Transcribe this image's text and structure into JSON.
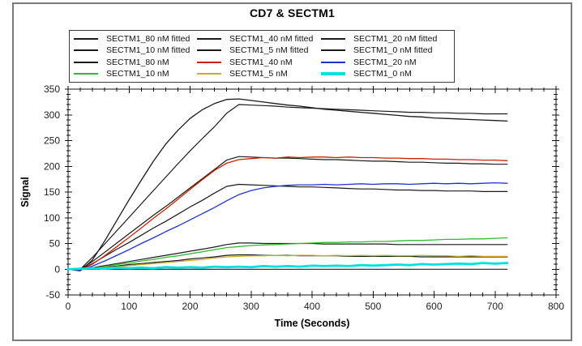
{
  "frame": {
    "border_color": "#7a7a7a"
  },
  "legend": {
    "border_color": "#3a3a3a",
    "columns": 3,
    "position": "top-center"
  },
  "chart_data": {
    "type": "line",
    "title": "CD7 & SECTM1",
    "xlabel": "Time (Seconds)",
    "ylabel": "Signal",
    "xlim": [
      0,
      800
    ],
    "ylim": [
      -50,
      350
    ],
    "x_ticks": [
      0,
      100,
      200,
      300,
      400,
      500,
      600,
      700,
      800
    ],
    "x_minor_step": 20,
    "y_ticks": [
      -50,
      0,
      50,
      100,
      150,
      200,
      250,
      300,
      350
    ],
    "y_minor_step": 10,
    "grid": false,
    "x": [
      0,
      20,
      40,
      60,
      80,
      100,
      120,
      140,
      160,
      180,
      200,
      220,
      240,
      260,
      280,
      300,
      320,
      340,
      360,
      380,
      400,
      420,
      440,
      460,
      480,
      500,
      520,
      540,
      560,
      580,
      600,
      620,
      640,
      660,
      680,
      700,
      720
    ],
    "series": [
      {
        "name": "SECTM1_80 nM fitted",
        "color": "#1a1a1a",
        "width": 1.2,
        "values": [
          0,
          0,
          23,
          49,
          75,
          101,
          127,
          153,
          179,
          205,
          230,
          254,
          277,
          303,
          320,
          319,
          318,
          317,
          315,
          314,
          313,
          312,
          311,
          310,
          309,
          308,
          307,
          306,
          305,
          305,
          304,
          304,
          303,
          303,
          302,
          302,
          302
        ]
      },
      {
        "name": "SECTM1_40 nM fitted",
        "color": "#1a1a1a",
        "width": 1.2,
        "values": [
          0,
          0,
          15,
          33,
          51,
          69,
          87,
          105,
          122,
          140,
          158,
          176,
          194,
          212,
          219,
          218,
          217,
          216,
          216,
          215,
          214,
          213,
          213,
          212,
          211,
          210,
          210,
          209,
          208,
          208,
          207,
          206,
          206,
          205,
          205,
          204,
          204
        ]
      },
      {
        "name": "SECTM1_20 nM fitted",
        "color": "#1a1a1a",
        "width": 1.2,
        "values": [
          0,
          0,
          11,
          25,
          39,
          52,
          66,
          80,
          93,
          107,
          121,
          134,
          148,
          161,
          165,
          164,
          163,
          162,
          161,
          160,
          160,
          159,
          158,
          157,
          156,
          156,
          155,
          154,
          154,
          153,
          153,
          152,
          152,
          152,
          151,
          151,
          151
        ]
      },
      {
        "name": "SECTM1_10 nM fitted",
        "color": "#1a1a1a",
        "width": 1.2,
        "values": [
          0,
          0,
          3,
          7,
          11,
          15,
          19,
          23,
          27,
          31,
          35,
          39,
          43,
          48,
          51,
          51,
          50,
          50,
          50,
          50,
          50,
          49,
          49,
          49,
          49,
          49,
          49,
          48,
          48,
          48,
          48,
          48,
          48,
          48,
          48,
          48,
          48
        ]
      },
      {
        "name": "SECTM1_5 nM fitted",
        "color": "#1a1a1a",
        "width": 1.2,
        "values": [
          0,
          0,
          2,
          4,
          6,
          9,
          11,
          13,
          15,
          17,
          20,
          22,
          24,
          27,
          28,
          28,
          27,
          27,
          27,
          26,
          26,
          26,
          26,
          25,
          25,
          25,
          25,
          25,
          25,
          24,
          24,
          24,
          24,
          24,
          24,
          24,
          24
        ]
      },
      {
        "name": "SECTM1_0 nM fitted",
        "color": "#1a1a1a",
        "width": 1.2,
        "values": [
          0,
          0,
          0,
          0,
          0,
          0,
          0,
          0,
          0,
          0,
          0,
          0,
          0,
          0,
          0,
          0,
          0,
          0,
          0,
          0,
          0,
          0,
          0,
          0,
          0,
          0,
          0,
          0,
          0,
          0,
          0,
          0,
          0,
          0,
          0,
          0,
          0
        ]
      },
      {
        "name": "SECTM1_80 nM",
        "color": "#1a1a1a",
        "width": 1.3,
        "values": [
          0,
          -3,
          18,
          55,
          95,
          135,
          173,
          210,
          243,
          270,
          293,
          310,
          322,
          330,
          331,
          328,
          325,
          322,
          319,
          317,
          314,
          311,
          309,
          307,
          305,
          303,
          301,
          299,
          297,
          296,
          294,
          293,
          292,
          291,
          290,
          289,
          288
        ]
      },
      {
        "name": "SECTM1_40 nM",
        "color": "#cc2200",
        "width": 1.3,
        "values": [
          0,
          -2,
          10,
          26,
          44,
          62,
          80,
          99,
          117,
          136,
          155,
          174,
          192,
          206,
          213,
          215,
          217,
          216,
          218,
          217,
          218,
          218,
          217,
          218,
          217,
          217,
          216,
          216,
          215,
          215,
          214,
          214,
          213,
          213,
          212,
          212,
          211
        ]
      },
      {
        "name": "SECTM1_20 nM",
        "color": "#2233cc",
        "width": 1.3,
        "values": [
          0,
          -2,
          6,
          16,
          27,
          38,
          50,
          61,
          73,
          84,
          96,
          108,
          120,
          133,
          145,
          153,
          158,
          161,
          163,
          164,
          164,
          165,
          164,
          165,
          166,
          165,
          166,
          166,
          165,
          166,
          167,
          166,
          167,
          166,
          167,
          168,
          167
        ]
      },
      {
        "name": "SECTM1_10 nM",
        "color": "#33bb33",
        "width": 1.3,
        "values": [
          0,
          0,
          2,
          5,
          9,
          12,
          16,
          19,
          23,
          26,
          30,
          34,
          38,
          42,
          44,
          46,
          47,
          48,
          49,
          50,
          51,
          52,
          52,
          53,
          53,
          54,
          54,
          55,
          56,
          56,
          57,
          58,
          58,
          59,
          59,
          60,
          61
        ]
      },
      {
        "name": "SECTM1_5 nM",
        "color": "#ccaa22",
        "width": 1.3,
        "values": [
          0,
          0,
          1,
          3,
          5,
          7,
          9,
          11,
          13,
          15,
          17,
          19,
          22,
          24,
          25,
          26,
          26,
          27,
          26,
          27,
          27,
          26,
          27,
          26,
          27,
          26,
          27,
          26,
          26,
          27,
          26,
          26,
          25,
          26,
          25,
          25,
          25
        ]
      },
      {
        "name": "SECTM1_0 nM",
        "color": "#00e0e0",
        "width": 2.8,
        "values": [
          0,
          1,
          2,
          1,
          3,
          2,
          3,
          2,
          4,
          3,
          4,
          3,
          5,
          4,
          5,
          4,
          6,
          5,
          6,
          5,
          7,
          6,
          7,
          6,
          8,
          7,
          8,
          9,
          8,
          10,
          9,
          10,
          11,
          10,
          12,
          11,
          12
        ]
      }
    ]
  }
}
